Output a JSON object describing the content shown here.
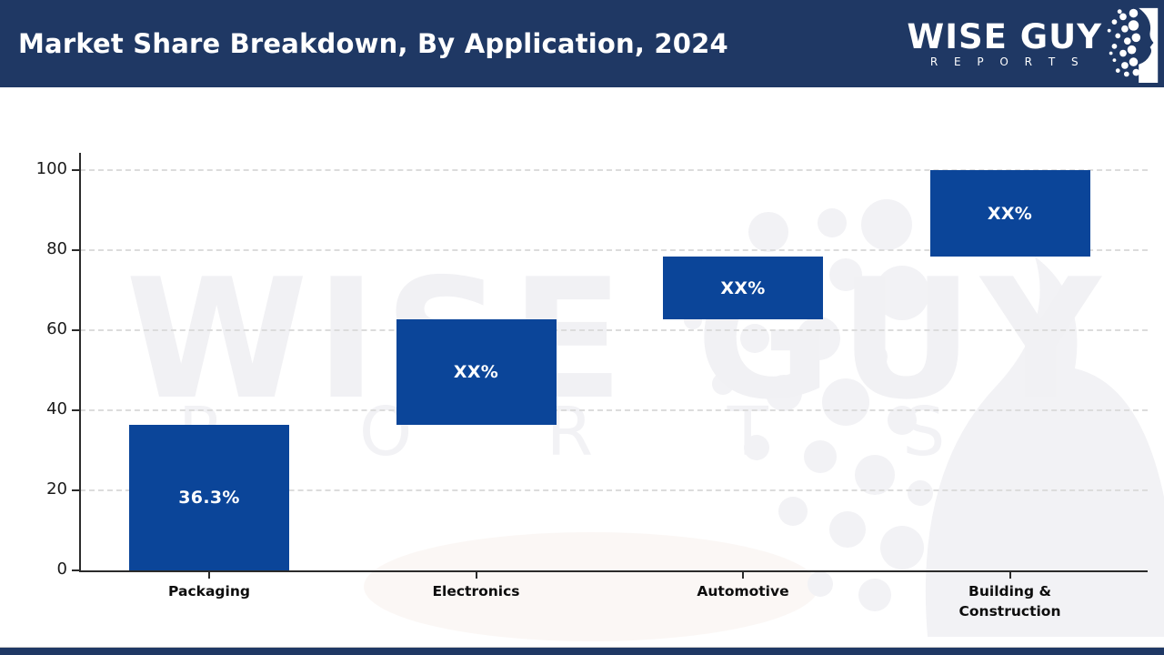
{
  "header": {
    "title": "Market Share Breakdown, By Application, 2024",
    "background_color": "#1f3864",
    "logo": {
      "line1": "WISE GUY",
      "line2": "R E P O R T S"
    }
  },
  "watermark": {
    "line1": "WISE GUY",
    "line2": "R O R T S"
  },
  "chart_data": {
    "type": "bar",
    "subtype": "waterfall",
    "title": "Market Share Breakdown, By Application, 2024",
    "categories": [
      "Packaging",
      "Electronics",
      "Automotive",
      "Building & Construction"
    ],
    "segments": [
      {
        "category": "Packaging",
        "start": 0,
        "end": 36.3,
        "value": 36.3,
        "label": "36.3%"
      },
      {
        "category": "Electronics",
        "start": 36.3,
        "end": 62.8,
        "value": 26.5,
        "label": "XX%"
      },
      {
        "category": "Automotive",
        "start": 62.8,
        "end": 78.3,
        "value": 15.5,
        "label": "XX%"
      },
      {
        "category": "Building & Construction",
        "start": 78.3,
        "end": 100,
        "value": 21.7,
        "label": "XX%"
      }
    ],
    "xlabel": "",
    "ylabel": "",
    "ylim": [
      0,
      100
    ],
    "y_ticks": [
      0,
      20,
      40,
      60,
      80,
      100
    ],
    "grid": "horizontal-dashed",
    "legend": "none",
    "bar_color": "#0b4599",
    "bar_label_color": "#ffffff",
    "axis_color": "#2b2b2b",
    "gridline_color": "#dcdcdc",
    "tick_label_color": "#1a1a1a"
  },
  "footer": {
    "background_color": "#1f3864"
  }
}
